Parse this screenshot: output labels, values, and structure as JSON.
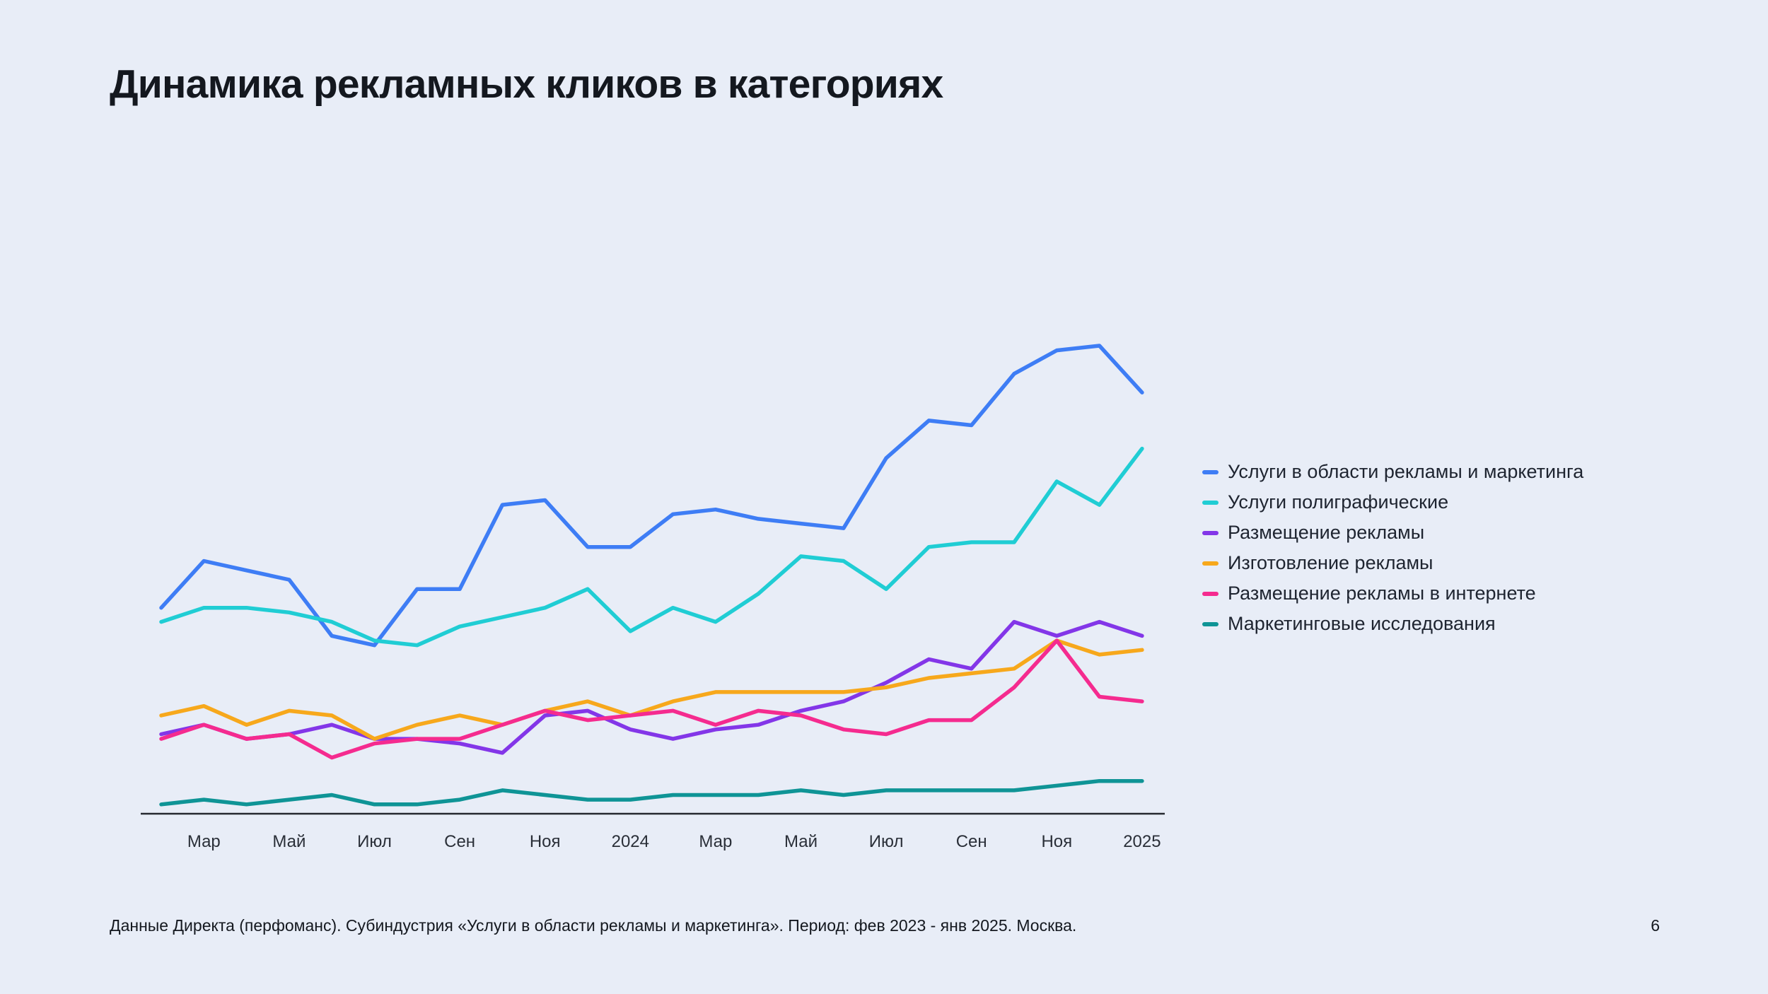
{
  "page": {
    "title": "Динамика рекламных кликов в категориях",
    "footer": "Данные Директа (перфоманс). Субиндустрия «Услуги в области рекламы и маркетинга». Период: фев 2023 - янв 2025. Москва.",
    "page_number": "6",
    "background_color": "#e8edf7"
  },
  "chart_data": {
    "type": "line",
    "title": "Динамика рекламных кликов в категориях",
    "period": "фев 2023 - янв 2025",
    "n_points": 24,
    "x_tick_labels": [
      "Мар",
      "Май",
      "Июл",
      "Сен",
      "Ноя",
      "2024",
      "Мар",
      "Май",
      "Июл",
      "Сен",
      "Ноя",
      "2025"
    ],
    "x_tick_point_indices": [
      1,
      3,
      5,
      7,
      9,
      11,
      13,
      15,
      17,
      19,
      21,
      23
    ],
    "ylabel": "",
    "xlabel": "",
    "ylim": [
      0,
      105
    ],
    "y_units": "relative clicks (no y axis labels shown, values estimated 0-100)",
    "grid": false,
    "legend_position": "right",
    "axis_color": "#25282f",
    "tick_label_color": "#2a2f38",
    "series": [
      {
        "name": "Услуги в области рекламы и маркетинга",
        "color": "#3e7df5",
        "values": [
          44,
          54,
          52,
          50,
          38,
          36,
          48,
          48,
          66,
          67,
          57,
          57,
          64,
          65,
          63,
          62,
          61,
          76,
          84,
          83,
          94,
          99,
          100,
          90
        ]
      },
      {
        "name": "Услуги полиграфические",
        "color": "#20cdd4",
        "values": [
          41,
          44,
          44,
          43,
          41,
          37,
          36,
          40,
          42,
          44,
          48,
          39,
          44,
          41,
          47,
          55,
          54,
          48,
          57,
          58,
          58,
          71,
          66,
          78
        ]
      },
      {
        "name": "Размещение рекламы",
        "color": "#8336e8",
        "values": [
          17,
          19,
          16,
          17,
          19,
          16,
          16,
          15,
          13,
          21,
          22,
          18,
          16,
          18,
          19,
          22,
          24,
          28,
          33,
          31,
          41,
          38,
          41,
          38
        ]
      },
      {
        "name": "Изготовление рекламы",
        "color": "#f7a81c",
        "values": [
          21,
          23,
          19,
          22,
          21,
          16,
          19,
          21,
          19,
          22,
          24,
          21,
          24,
          26,
          26,
          26,
          26,
          27,
          29,
          30,
          31,
          37,
          34,
          35
        ]
      },
      {
        "name": "Размещение рекламы в интернете",
        "color": "#f52b8f",
        "values": [
          16,
          19,
          16,
          17,
          12,
          15,
          16,
          16,
          19,
          22,
          20,
          21,
          22,
          19,
          22,
          21,
          18,
          17,
          20,
          20,
          27,
          37,
          25,
          24
        ]
      },
      {
        "name": "Маркетинговые исследования",
        "color": "#0f9496",
        "values": [
          2,
          3,
          2,
          3,
          4,
          2,
          2,
          3,
          5,
          4,
          3,
          3,
          4,
          4,
          4,
          5,
          4,
          5,
          5,
          5,
          5,
          6,
          7,
          7
        ]
      }
    ]
  }
}
